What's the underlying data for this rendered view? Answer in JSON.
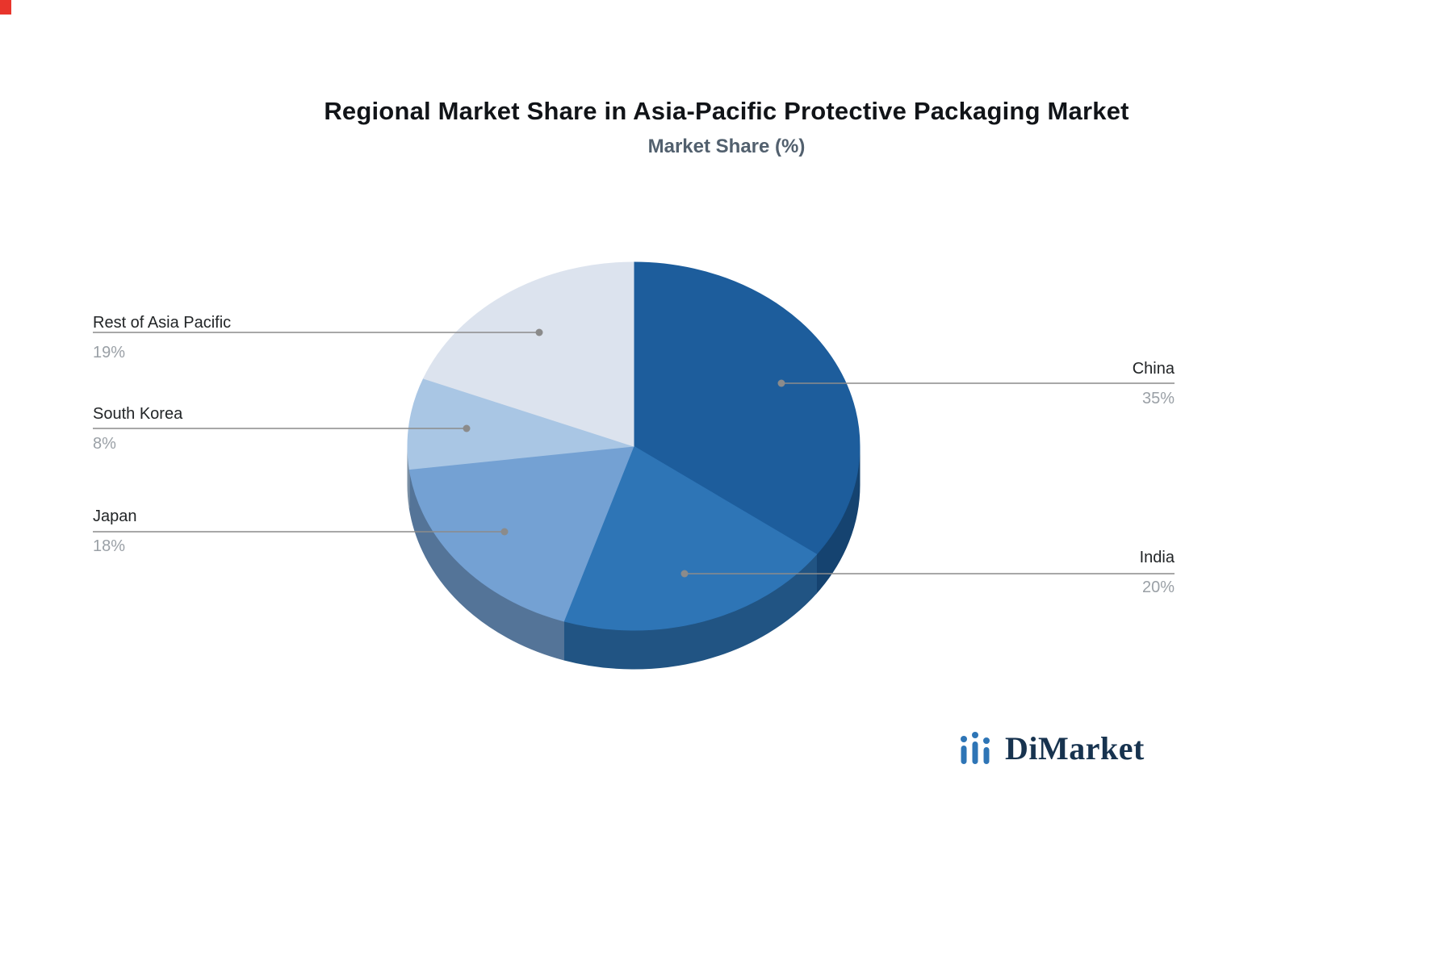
{
  "chart_data": {
    "type": "pie",
    "title": "Regional Market Share in Asia-Pacific Protective Packaging Market",
    "subtitle": "Market Share (%)",
    "unit": "%",
    "start_angle_deg": 0,
    "direction": "clockwise",
    "legend": "none",
    "style": "3d-pie",
    "label_line_color": "#8b8b8b",
    "slices": [
      {
        "label": "China",
        "value": 35,
        "value_label": "35%",
        "color": "#1d5d9c",
        "side": "right"
      },
      {
        "label": "India",
        "value": 20,
        "value_label": "20%",
        "color": "#2e75b6",
        "side": "right"
      },
      {
        "label": "Japan",
        "value": 18,
        "value_label": "18%",
        "color": "#74a1d3",
        "side": "left"
      },
      {
        "label": "South Korea",
        "value": 8,
        "value_label": "8%",
        "color": "#a9c6e4",
        "side": "left"
      },
      {
        "label": "Rest of Asia Pacific",
        "value": 19,
        "value_label": "19%",
        "color": "#dce3ee",
        "side": "left"
      }
    ]
  },
  "branding": {
    "logo_text": "DiMarket",
    "logo_icon": "bar-chart-dots-icon",
    "logo_color": "#2e75b6",
    "wordmark_color": "#17334f"
  }
}
